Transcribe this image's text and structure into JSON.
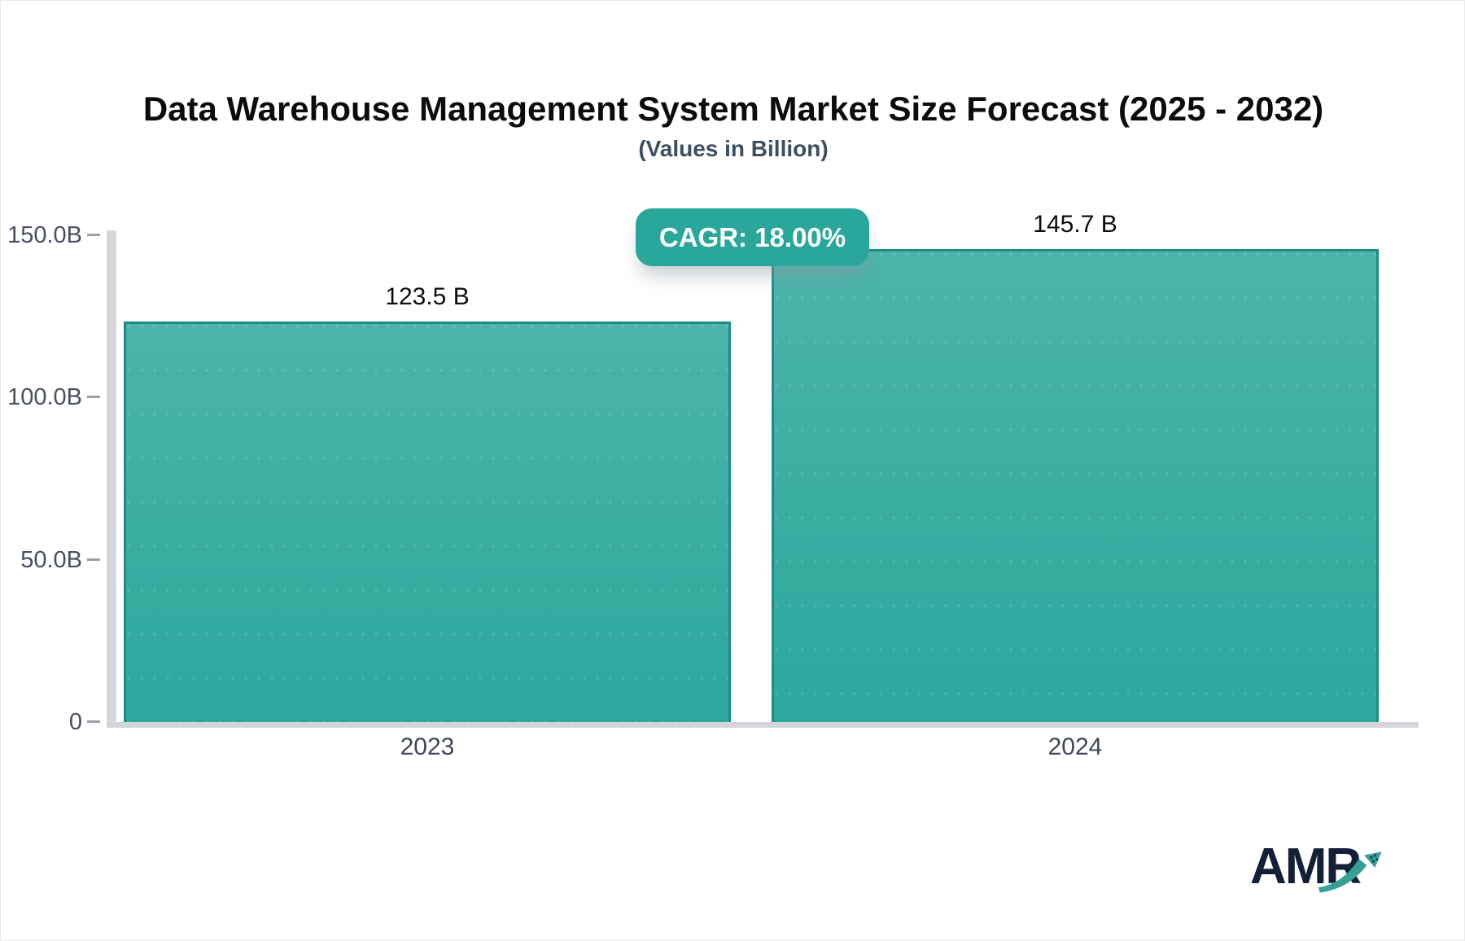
{
  "page": {
    "background": "#ffffff",
    "border_color": "#ececef"
  },
  "header": {
    "title": "Data Warehouse Management System Market Size Forecast (2025 - 2032)",
    "subtitle": "(Values in Billion)"
  },
  "badge": {
    "label": "CAGR: 18.00%",
    "background": "#2aa79b",
    "text_color": "#ffffff"
  },
  "chart_data": {
    "type": "bar",
    "title": "Data Warehouse Management System Market Size Forecast (2025 - 2032)",
    "subtitle": "(Values in Billion)",
    "categories": [
      "2023",
      "2024"
    ],
    "values": [
      123.5,
      145.7
    ],
    "value_labels": [
      "123.5 B",
      "145.7 B"
    ],
    "ylim": [
      0,
      150
    ],
    "yticks": [
      {
        "value": 150,
        "label": "150.0B"
      },
      {
        "value": 100,
        "label": "100.0B"
      },
      {
        "value": 50,
        "label": "50.0B"
      },
      {
        "value": 0,
        "label": "0"
      }
    ],
    "grid": false,
    "legend": "none",
    "annotations": [
      "CAGR: 18.00%"
    ],
    "bar_gradient": [
      "#4cb4ab",
      "#2ba89c"
    ],
    "bar_border_color": "#1e8c82",
    "axis_line_color": "#d6d8dc"
  },
  "logo": {
    "text": "AMR",
    "text_color": "#142038",
    "arrow_color": "#35a093",
    "arrow_icon": "growth-arrow-icon"
  }
}
